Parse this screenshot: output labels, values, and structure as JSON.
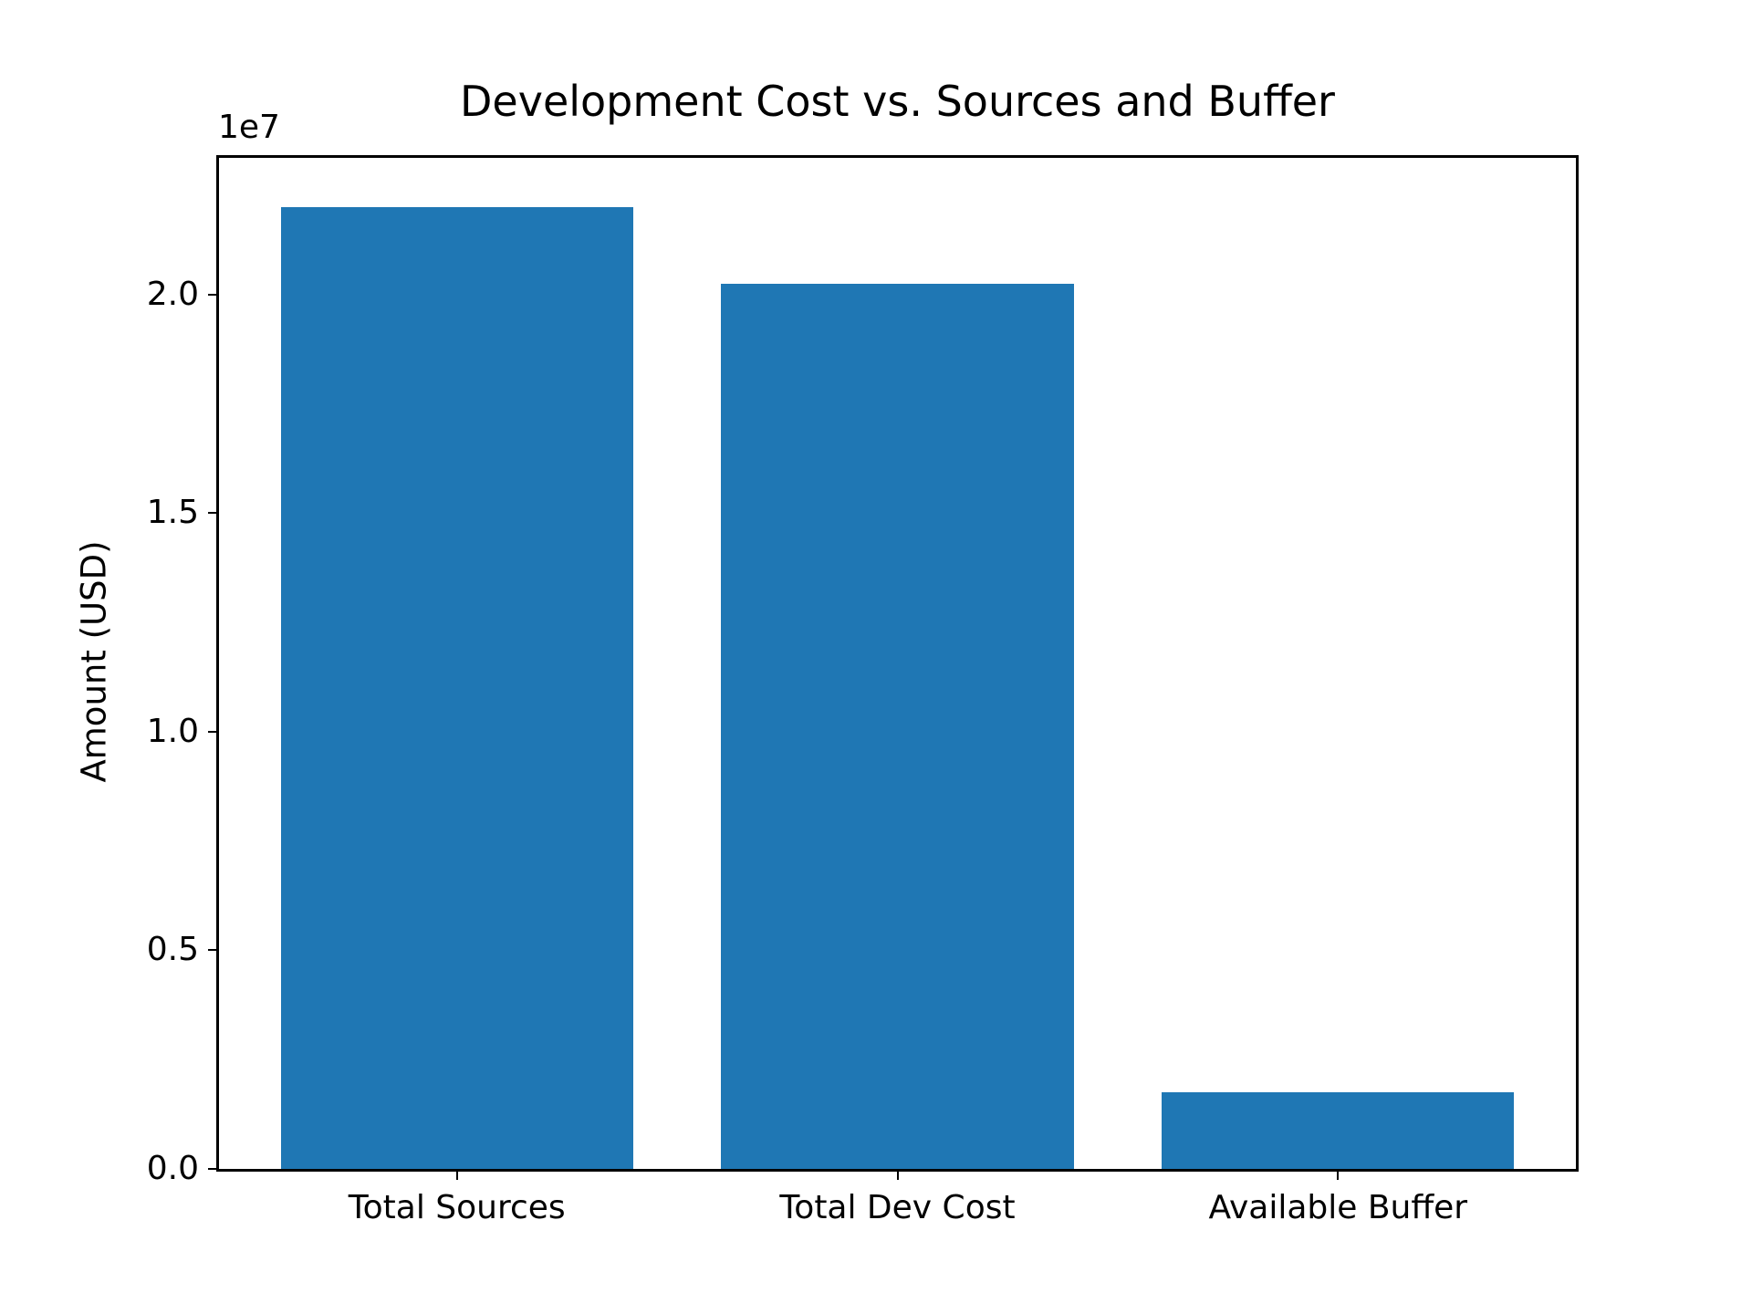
{
  "chart_data": {
    "type": "bar",
    "title": "Development Cost vs. Sources and Buffer",
    "xlabel": "",
    "ylabel": "Amount (USD)",
    "y_offset_label": "1e7",
    "categories": [
      "Total Sources",
      "Total Dev Cost",
      "Available Buffer"
    ],
    "values": [
      22000000,
      20250000,
      1750000
    ],
    "ylim": [
      0,
      23125000
    ],
    "yticks": [
      0,
      5000000,
      10000000,
      15000000,
      20000000
    ],
    "ytick_labels": [
      "0.0",
      "0.5",
      "1.0",
      "1.5",
      "2.0"
    ],
    "bar_color": "#1f77b4",
    "axis_color": "#000000",
    "background_color": "#ffffff",
    "grid": false,
    "legend": null,
    "bar_width_fraction": 0.8,
    "x_margin_fraction": 0.04
  }
}
